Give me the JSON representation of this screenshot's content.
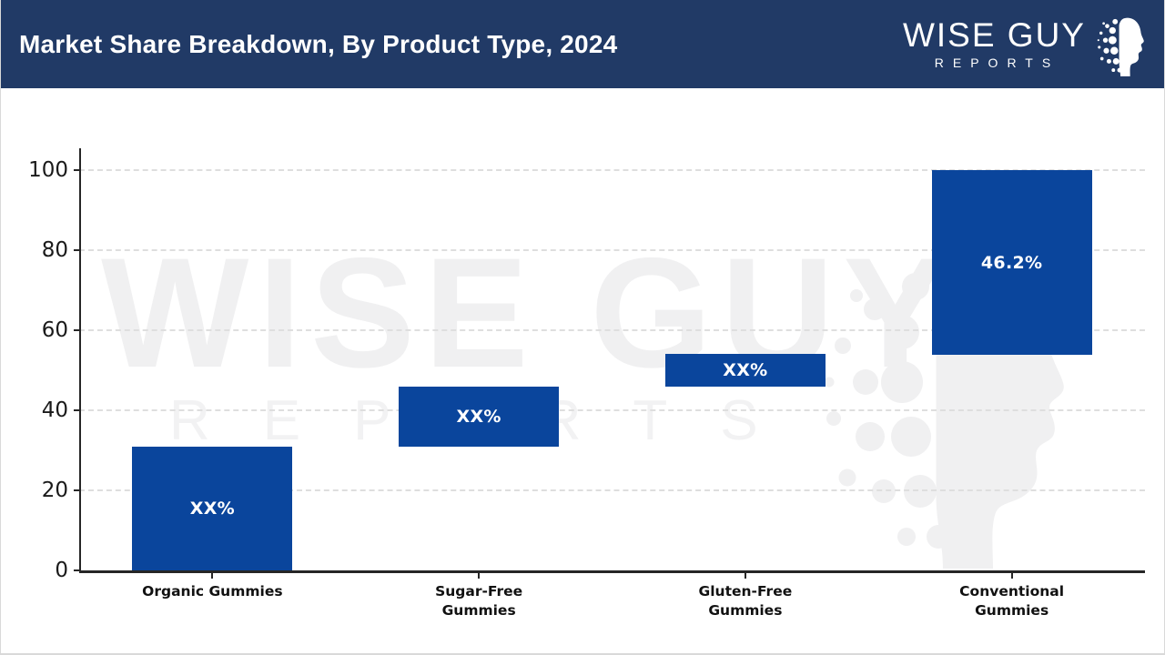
{
  "header": {
    "title": "Market Share Breakdown, By Product Type, 2024",
    "logo": {
      "brand": "WISE GUY",
      "sub": "REPORTS"
    }
  },
  "watermark": {
    "brand": "WISE GUY",
    "sub": "REPORTS"
  },
  "colors": {
    "header_bg": "#213a66",
    "bar": "#0a459c",
    "axis": "#262626",
    "grid": "#dedede",
    "title_text": "#ffffff",
    "watermark_text": "#f0f0f1"
  },
  "chart_data": {
    "type": "bar",
    "subtype": "floating-waterfall",
    "title": "Market Share Breakdown, By Product Type, 2024",
    "xlabel": "",
    "ylabel": "",
    "ylim": [
      0,
      105
    ],
    "yticks": [
      0,
      20,
      40,
      60,
      80,
      100
    ],
    "grid": "horizontal-dashed",
    "legend": "none",
    "bar_color": "#0a459c",
    "categories": [
      "Organic Gummies",
      "Sugar-Free Gummies",
      "Gluten-Free Gummies",
      "Conventional Gummies"
    ],
    "bars": [
      {
        "category": "Organic Gummies",
        "start": 0,
        "end": 31,
        "label": "XX%"
      },
      {
        "category": "Sugar-Free Gummies",
        "start": 31,
        "end": 46,
        "label": "XX%"
      },
      {
        "category": "Gluten-Free Gummies",
        "start": 46,
        "end": 54,
        "label": "XX%"
      },
      {
        "category": "Conventional Gummies",
        "start": 53.8,
        "end": 100,
        "label": "46.2%"
      }
    ]
  }
}
